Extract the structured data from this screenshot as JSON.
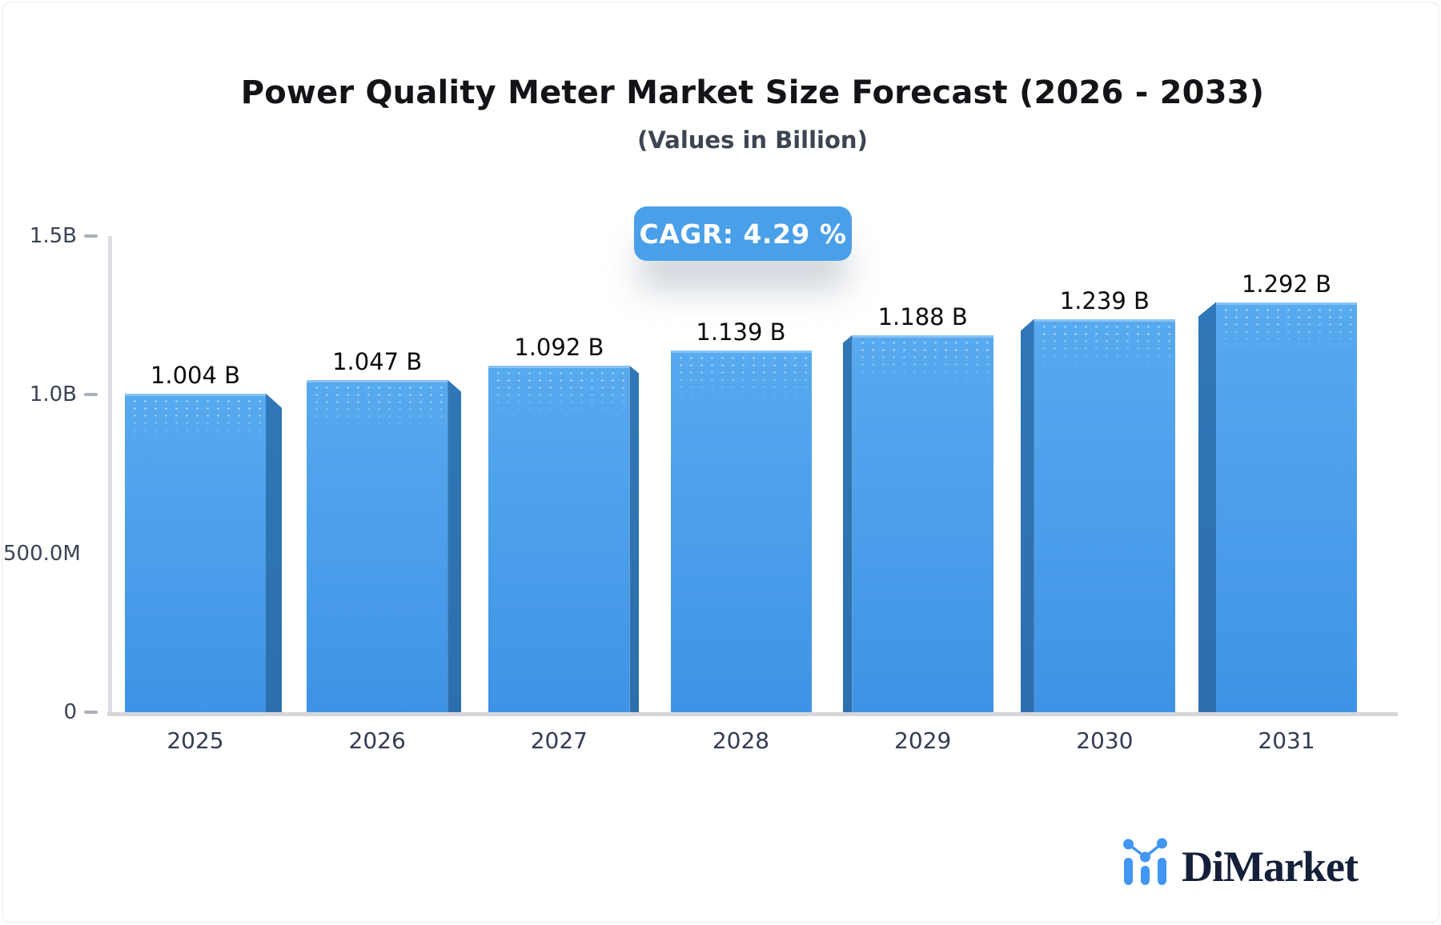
{
  "title": "Power Quality Meter Market Size Forecast (2026 - 2033)",
  "subtitle": "(Values in Billion)",
  "badge": {
    "label": "CAGR: 4.29 %"
  },
  "chart_data": {
    "type": "bar",
    "categories": [
      "2025",
      "2026",
      "2027",
      "2028",
      "2029",
      "2030",
      "2031"
    ],
    "values": [
      1.004,
      1.047,
      1.092,
      1.139,
      1.188,
      1.239,
      1.292
    ],
    "value_labels": [
      "1.004 B",
      "1.047 B",
      "1.092 B",
      "1.139 B",
      "1.188 B",
      "1.239 B",
      "1.292 B"
    ],
    "unit": "Billion",
    "ylim": [
      0,
      1.5
    ],
    "y_ticks": [
      {
        "label": "1.5B",
        "value": 1.5,
        "tick": true
      },
      {
        "label": "1.0B",
        "value": 1.0,
        "tick": true
      },
      {
        "label": "500.0M",
        "value": 0.5,
        "tick": false
      },
      {
        "label": "0",
        "value": 0.0,
        "tick": true
      }
    ],
    "grid": false,
    "legend": "none",
    "style": "3d-blocks-perspective-toward-center"
  },
  "colors": {
    "bar_face_top": "#57aaef",
    "bar_face_bottom": "#3e93e6",
    "bar_side_top": "#2f77b6",
    "bar_side_bottom": "#2d6fae",
    "badge_bg": "#4a9fe9",
    "badge_text": "#ffffff",
    "axis_line": "#d6d7db",
    "tick": "#aab0bb",
    "axis_label": "#3b4254",
    "value_label": "#0c0c0e",
    "logo_blue": "#4196f3",
    "logo_navy": "#142039"
  },
  "branding": {
    "logo_text": "DiMarket",
    "logo_icon": "mini-bar-chart-icon"
  }
}
